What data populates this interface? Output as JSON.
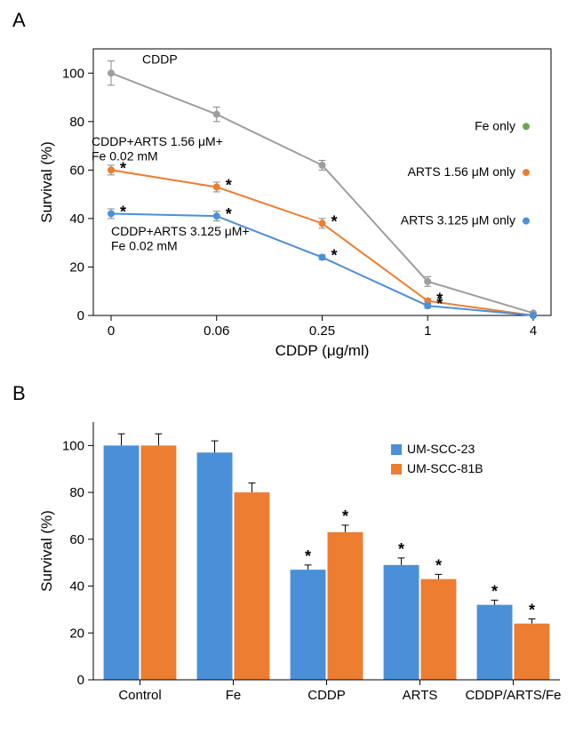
{
  "panelA": {
    "label": "A",
    "type": "line",
    "xlabel": "CDDP (μg/ml)",
    "ylabel": "Survival (%)",
    "ylim": [
      0,
      110
    ],
    "ytick_step": 20,
    "x_categories": [
      "0",
      "0.06",
      "0.25",
      "1",
      "4"
    ],
    "label_fontsize": 17,
    "tick_fontsize": 15,
    "background_color": "#ffffff",
    "series": [
      {
        "name": "CDDP",
        "label": "CDDP",
        "color": "#9e9e9e",
        "values": [
          100,
          83,
          62,
          14,
          1
        ],
        "errors": [
          5,
          3,
          2,
          2,
          0
        ],
        "stars": [
          false,
          false,
          false,
          false,
          false
        ]
      },
      {
        "name": "CDDP+ARTS 1.56 μM+ Fe 0.02 mM",
        "label": "CDDP+ARTS 1.56 μM+\nFe 0.02 mM",
        "color": "#ed7d31",
        "values": [
          60,
          53,
          38,
          6,
          0
        ],
        "errors": [
          2,
          2,
          2,
          1,
          0
        ],
        "stars": [
          true,
          true,
          true,
          true,
          false
        ]
      },
      {
        "name": "CDDP+ARTS 3.125 μM+ Fe 0.02 mM",
        "label": "CDDP+ARTS 3.125 μM+\nFe 0.02 mM",
        "color": "#4a90d9",
        "values": [
          42,
          41,
          24,
          4,
          0
        ],
        "errors": [
          2,
          2,
          1,
          1,
          0
        ],
        "stars": [
          true,
          true,
          true,
          true,
          false
        ]
      }
    ],
    "side_points": [
      {
        "label": "Fe only",
        "color": "#6aa84f",
        "y": 78
      },
      {
        "label": "ARTS 1.56 μM only",
        "color": "#ed7d31",
        "y": 59
      },
      {
        "label": "ARTS 3.125 μM only",
        "color": "#4a90d9",
        "y": 39
      }
    ]
  },
  "panelB": {
    "label": "B",
    "type": "bar",
    "xlabel": "",
    "ylabel": "Survival (%)",
    "ylim": [
      0,
      110
    ],
    "ytick_step": 20,
    "categories": [
      "Control",
      "Fe",
      "CDDP",
      "ARTS",
      "CDDP/ARTS/Fe"
    ],
    "label_fontsize": 17,
    "tick_fontsize": 15,
    "background_color": "#ffffff",
    "bar_width": 0.38,
    "legend": [
      {
        "name": "UM-SCC-23",
        "color": "#4a90d9"
      },
      {
        "name": "UM-SCC-81B",
        "color": "#ed7d31"
      }
    ],
    "series": [
      {
        "name": "UM-SCC-23",
        "color": "#4a90d9",
        "values": [
          100,
          97,
          47,
          49,
          32
        ],
        "errors": [
          5,
          5,
          2,
          3,
          2
        ],
        "stars": [
          false,
          false,
          true,
          true,
          true
        ]
      },
      {
        "name": "UM-SCC-81B",
        "color": "#ed7d31",
        "values": [
          100,
          80,
          63,
          43,
          24
        ],
        "errors": [
          5,
          4,
          3,
          2,
          2
        ],
        "stars": [
          false,
          false,
          true,
          true,
          true
        ]
      }
    ]
  }
}
